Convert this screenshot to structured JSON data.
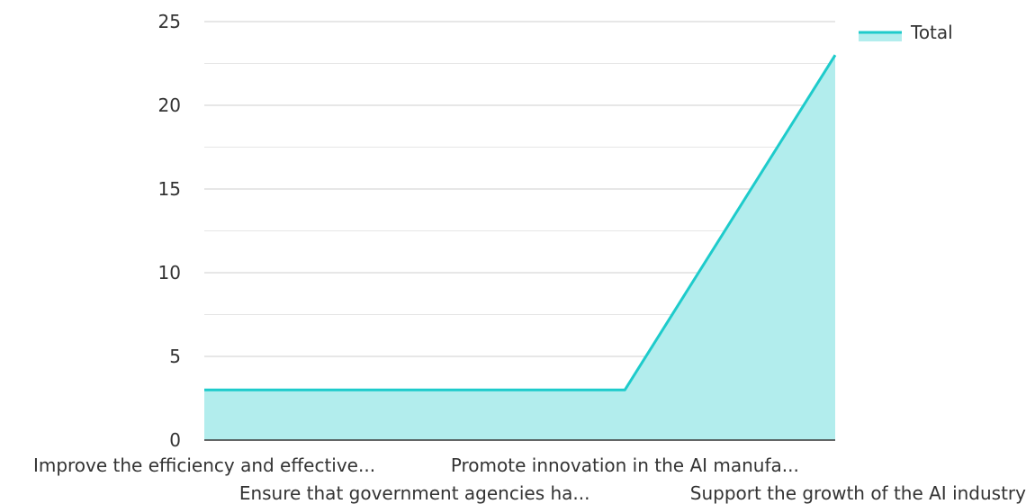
{
  "chart_data": {
    "type": "area",
    "categories": [
      "Improve the efficiency and effective...",
      "Ensure that government agencies ha...",
      "Promote innovation in the AI manufa...",
      "Support the growth of the AI industry"
    ],
    "series": [
      {
        "name": "Total",
        "values": [
          3,
          3,
          3,
          23
        ]
      }
    ],
    "y_ticks": [
      "0",
      "5",
      "10",
      "15",
      "20",
      "25"
    ],
    "ylim": [
      0,
      25
    ],
    "grid": true,
    "legend": "top-right",
    "colors": {
      "line": "#1ecbcb",
      "fill": "#b2eded",
      "grid": "#cccccc",
      "axis": "#333333"
    }
  }
}
